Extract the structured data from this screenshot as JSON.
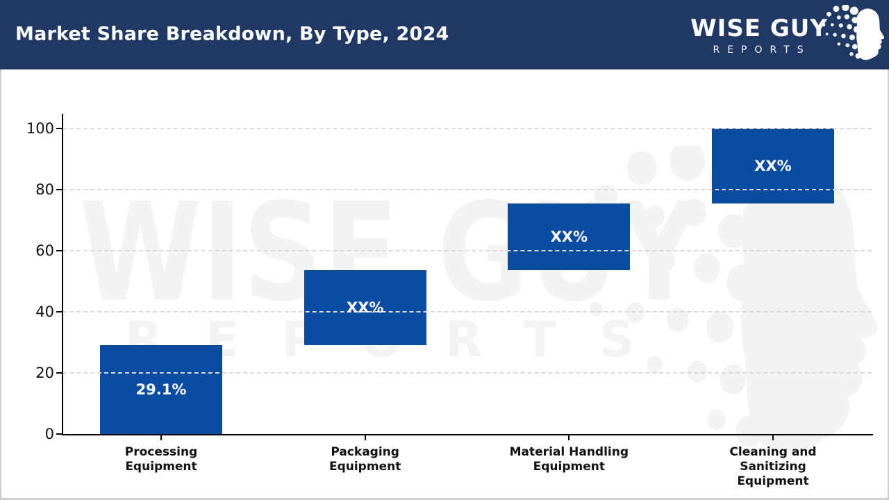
{
  "header": {
    "title": "Market Share Breakdown, By Type, 2024",
    "logo": {
      "name": "WISE GUY",
      "sub": "REPORTS"
    }
  },
  "watermark": {
    "name": "WISE GUY",
    "sub": "REPORTS"
  },
  "chart_data": {
    "type": "bar",
    "subtype": "waterfall-stacked-segments",
    "title": "Market Share Breakdown, By Type, 2024",
    "unit": "%",
    "xlabel": "",
    "ylabel": "",
    "ylim": [
      0,
      105
    ],
    "yticks": [
      0,
      20,
      40,
      60,
      80,
      100
    ],
    "grid": "horizontal-dashed",
    "legend": "none",
    "bar_color": "#0c4ca0",
    "categories": [
      "Processing Equipment",
      "Packaging Equipment",
      "Material Handling Equipment",
      "Cleaning and Sanitizing Equipment"
    ],
    "category_lines": [
      [
        "Processing",
        "Equipment"
      ],
      [
        "Packaging",
        "Equipment"
      ],
      [
        "Material Handling",
        "Equipment"
      ],
      [
        "Cleaning and",
        "Sanitizing",
        "Equipment"
      ]
    ],
    "bars": [
      {
        "category": "Processing Equipment",
        "label": "29.1%",
        "value": 29.1,
        "start": 0,
        "end": 29.1
      },
      {
        "category": "Packaging Equipment",
        "label": "XX%",
        "value": 24.5,
        "start": 29.1,
        "end": 53.6
      },
      {
        "category": "Material Handling Equipment",
        "label": "XX%",
        "value": 21.9,
        "start": 53.6,
        "end": 75.5
      },
      {
        "category": "Cleaning and Sanitizing Equipment",
        "label": "XX%",
        "value": 24.5,
        "start": 75.5,
        "end": 100
      }
    ]
  },
  "colors": {
    "header_bg": "#1f3864",
    "bar": "#0c4ca0",
    "grid": "#dadada",
    "axis": "#000000",
    "watermark": "#f3f3f3",
    "border": "#cfcfcf"
  }
}
